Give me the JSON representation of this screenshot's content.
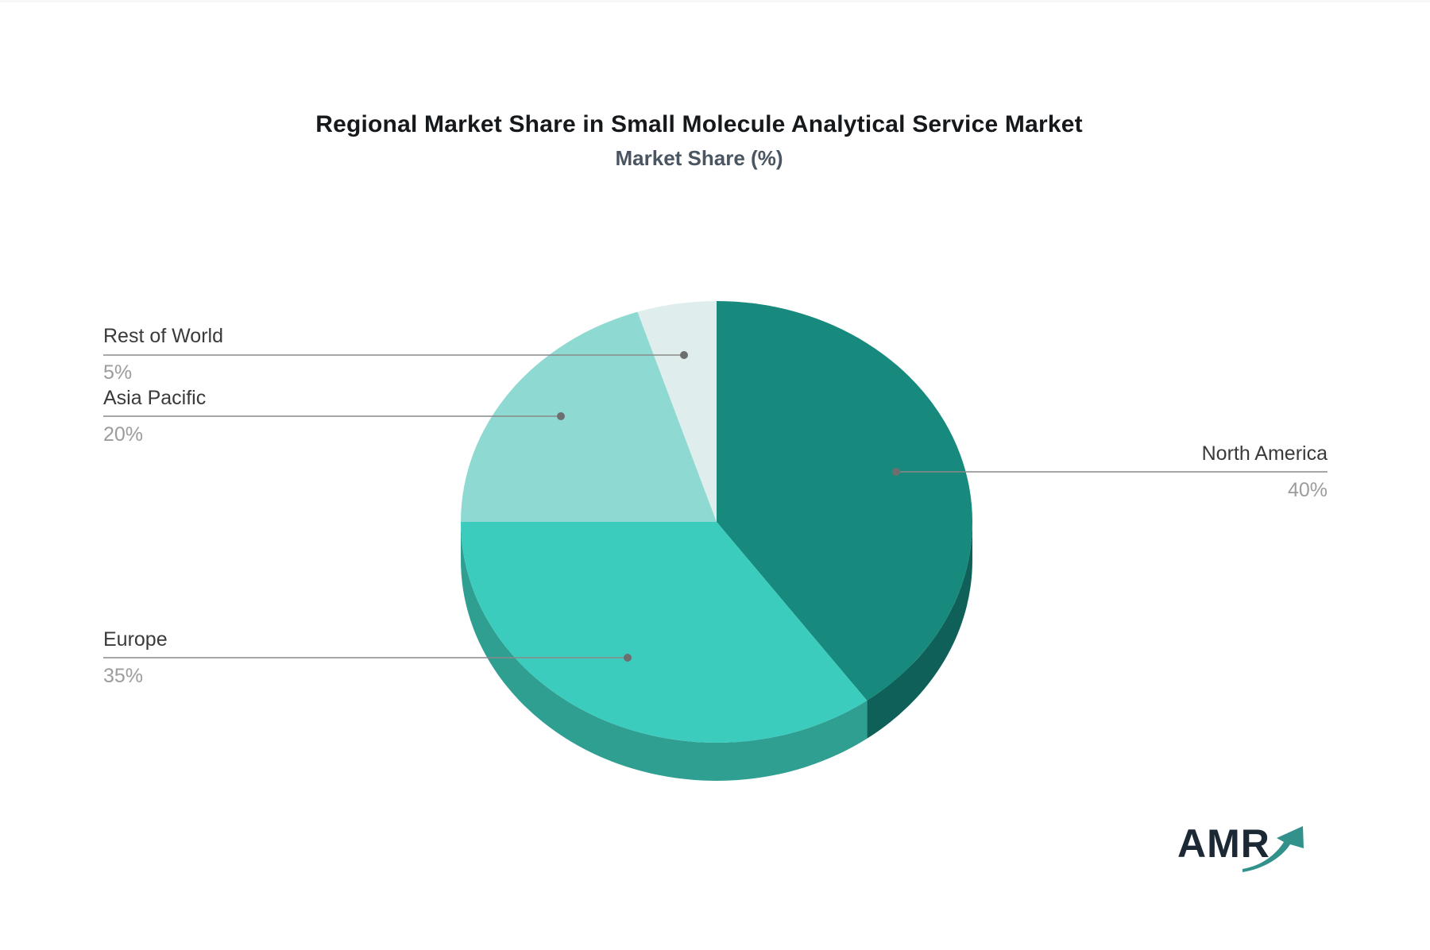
{
  "header": {
    "title": "Regional Market Share in Small Molecule Analytical Service Market",
    "subtitle": "Market Share (%)"
  },
  "chart_data": {
    "type": "pie",
    "title": "Regional Market Share in Small Molecule Analytical Service Market",
    "subtitle": "Market Share (%)",
    "unit": "%",
    "style": "3d-pie",
    "direction": "clockwise",
    "start_angle": "12-o-clock",
    "legend_position": "callout-labels",
    "slices": [
      {
        "label": "North America",
        "value": 40,
        "pct_label": "40%",
        "color": "#17897d",
        "side_color": "#0f6059"
      },
      {
        "label": "Europe",
        "value": 35,
        "pct_label": "35%",
        "color": "#3bccbd",
        "side_color": "#2f9f92"
      },
      {
        "label": "Asia Pacific",
        "value": 20,
        "pct_label": "20%",
        "color": "#8ed9d1"
      },
      {
        "label": "Rest of World",
        "value": 5,
        "pct_label": "5%",
        "color": "#dfeeec"
      }
    ]
  },
  "colors": {
    "leader_line": "#8a8a8a",
    "leader_dot": "#6e6e6e",
    "label_text": "#3a3a3a",
    "pct_text": "#9c9c9c",
    "logo_arrow": "#33918b"
  },
  "logo": {
    "text": "AMR"
  }
}
